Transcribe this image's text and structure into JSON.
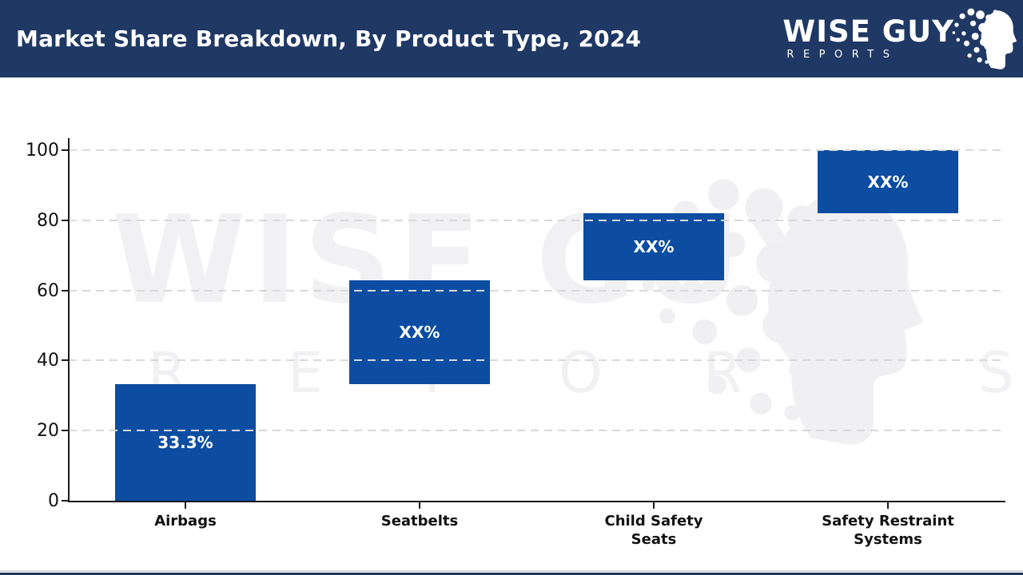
{
  "header": {
    "title": "Market Share Breakdown, By Product Type, 2024",
    "background_color": "#1f3864"
  },
  "logo": {
    "line1": "WISE GUY",
    "line2": "REPORTS",
    "icon": "dotted-face-profile-icon"
  },
  "watermark": {
    "line1": "WISE GUY",
    "line2": "R E P O R T S",
    "icon": "dotted-face-profile-icon"
  },
  "chart_data": {
    "type": "bar",
    "subtype": "waterfall",
    "title": "Market Share Breakdown, By Product Type, 2024",
    "xlabel": "",
    "ylabel": "",
    "categories": [
      "Airbags",
      "Seatbelts",
      "Child Safety Seats",
      "Safety Restraint Systems"
    ],
    "segments": [
      [
        0,
        33.3
      ],
      [
        33.3,
        62.9
      ],
      [
        62.9,
        81.9
      ],
      [
        81.9,
        100
      ]
    ],
    "values": [
      33.3,
      29.6,
      19.0,
      18.1
    ],
    "bar_labels": [
      "33.3%",
      "XX%",
      "XX%",
      "XX%"
    ],
    "yticks": [
      0,
      20,
      40,
      60,
      80,
      100
    ],
    "ylim": [
      0,
      103
    ],
    "grid": "dashed-horizontal",
    "legend": "none",
    "bar_color": "#0c4da2",
    "bar_label_color": "#ffffff",
    "axis_color": "#1a1a1a",
    "gridline_color": "#d9d9d9"
  }
}
